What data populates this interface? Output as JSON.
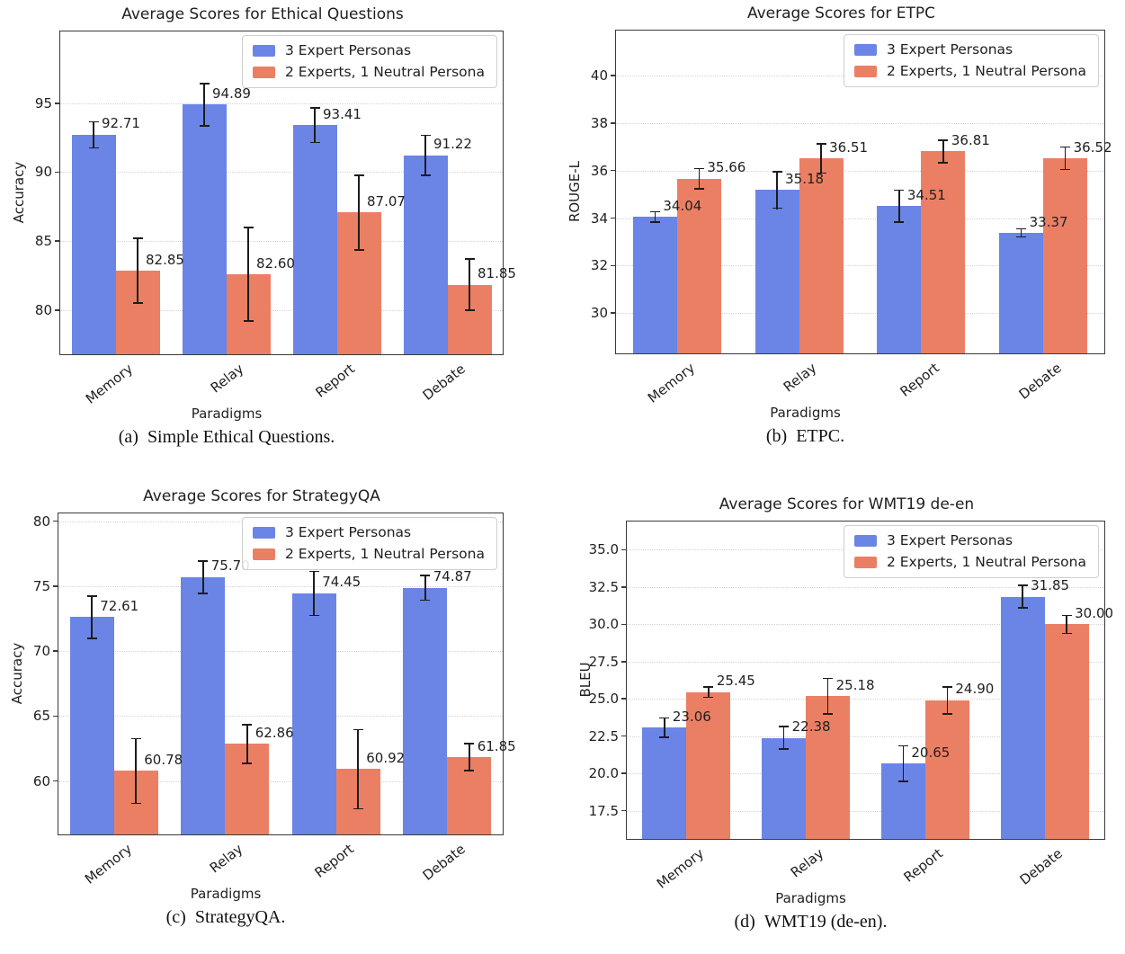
{
  "figure_colors": {
    "series1": "#6a85e6",
    "series2": "#eb7f64",
    "error_bar": "#1c1c1c",
    "grid": "#d4d4d4",
    "axis": "#3a3a3a",
    "text": "#1f1f1f"
  },
  "chart_data": [
    {
      "id": "a",
      "type": "bar",
      "title": "Average Scores for Ethical Questions",
      "caption_prefix": "(a)",
      "caption": "Simple Ethical Questions.",
      "xlabel": "Paradigms",
      "ylabel": "Accuracy",
      "categories": [
        "Memory",
        "Relay",
        "Report",
        "Debate"
      ],
      "series": [
        {
          "name": "3 Expert Personas",
          "color_key": "series1",
          "values": [
            92.71,
            94.89,
            93.41,
            91.22
          ],
          "errors": [
            1.0,
            1.6,
            1.3,
            1.5
          ]
        },
        {
          "name": "2 Experts, 1 Neutral Persona",
          "color_key": "series2",
          "values": [
            82.85,
            82.6,
            87.07,
            81.85
          ],
          "errors": [
            2.4,
            3.45,
            2.75,
            1.9
          ]
        }
      ],
      "ylim": [
        76.8,
        100.2
      ],
      "yticks": [
        {
          "value": 80,
          "label": "80"
        },
        {
          "value": 85,
          "label": "85"
        },
        {
          "value": 90,
          "label": "90"
        },
        {
          "value": 95,
          "label": "95"
        }
      ],
      "grid": "horizontal-dotted",
      "legend_position": "upper-right",
      "value_label_decimals": 2
    },
    {
      "id": "b",
      "type": "bar",
      "title": "Average Scores for ETPC",
      "caption_prefix": "(b)",
      "caption": "ETPC.",
      "xlabel": "Paradigms",
      "ylabel": "ROUGE-L",
      "categories": [
        "Memory",
        "Relay",
        "Report",
        "Debate"
      ],
      "series": [
        {
          "name": "3 Expert Personas",
          "color_key": "series1",
          "values": [
            34.04,
            35.18,
            34.51,
            33.37
          ],
          "errors": [
            0.25,
            0.8,
            0.7,
            0.2
          ]
        },
        {
          "name": "2 Experts, 1 Neutral Persona",
          "color_key": "series2",
          "values": [
            35.66,
            36.51,
            36.81,
            36.52
          ],
          "errors": [
            0.45,
            0.65,
            0.5,
            0.5
          ]
        }
      ],
      "ylim": [
        28.3,
        41.9
      ],
      "yticks": [
        {
          "value": 30,
          "label": "30"
        },
        {
          "value": 32,
          "label": "32"
        },
        {
          "value": 34,
          "label": "34"
        },
        {
          "value": 36,
          "label": "36"
        },
        {
          "value": 38,
          "label": "38"
        },
        {
          "value": 40,
          "label": "40"
        }
      ],
      "grid": "horizontal-dotted",
      "legend_position": "upper-right",
      "value_label_decimals": 2
    },
    {
      "id": "c",
      "type": "bar",
      "title": "Average Scores for StrategyQA",
      "caption_prefix": "(c)",
      "caption": "StrategyQA.",
      "xlabel": "Paradigms",
      "ylabel": "Accuracy",
      "categories": [
        "Memory",
        "Relay",
        "Report",
        "Debate"
      ],
      "series": [
        {
          "name": "3 Expert Personas",
          "color_key": "series1",
          "values": [
            72.61,
            75.7,
            74.45,
            74.87
          ],
          "errors": [
            1.7,
            1.3,
            1.75,
            1.0
          ]
        },
        {
          "name": "2 Experts, 1 Neutral Persona",
          "color_key": "series2",
          "values": [
            60.78,
            62.86,
            60.92,
            61.85
          ],
          "errors": [
            2.55,
            1.55,
            3.1,
            1.1
          ]
        }
      ],
      "ylim": [
        55.9,
        80.6
      ],
      "yticks": [
        {
          "value": 60,
          "label": "60"
        },
        {
          "value": 65,
          "label": "65"
        },
        {
          "value": 70,
          "label": "70"
        },
        {
          "value": 75,
          "label": "75"
        },
        {
          "value": 80,
          "label": "80"
        }
      ],
      "grid": "horizontal-dotted",
      "legend_position": "upper-right",
      "value_label_decimals": 2
    },
    {
      "id": "d",
      "type": "bar",
      "title": "Average Scores for WMT19 de-en",
      "caption_prefix": "(d)",
      "caption": "WMT19 (de-en).",
      "xlabel": "Paradigms",
      "ylabel": "BLEU",
      "categories": [
        "Memory",
        "Relay",
        "Report",
        "Debate"
      ],
      "series": [
        {
          "name": "3 Expert Personas",
          "color_key": "series1",
          "values": [
            23.06,
            22.38,
            20.65,
            31.85
          ],
          "errors": [
            0.7,
            0.8,
            1.25,
            0.8
          ]
        },
        {
          "name": "2 Experts, 1 Neutral Persona",
          "color_key": "series2",
          "values": [
            25.45,
            25.18,
            24.9,
            30.0
          ],
          "errors": [
            0.4,
            1.25,
            0.95,
            0.65
          ]
        }
      ],
      "ylim": [
        15.6,
        36.9
      ],
      "yticks": [
        {
          "value": 17.5,
          "label": "17.5"
        },
        {
          "value": 20,
          "label": "20.0"
        },
        {
          "value": 22.5,
          "label": "22.5"
        },
        {
          "value": 25,
          "label": "25.0"
        },
        {
          "value": 27.5,
          "label": "27.5"
        },
        {
          "value": 30,
          "label": "30.0"
        },
        {
          "value": 32.5,
          "label": "32.5"
        },
        {
          "value": 35,
          "label": "35.0"
        }
      ],
      "grid": "horizontal-dotted",
      "legend_position": "upper-right",
      "value_label_decimals": 2
    }
  ]
}
